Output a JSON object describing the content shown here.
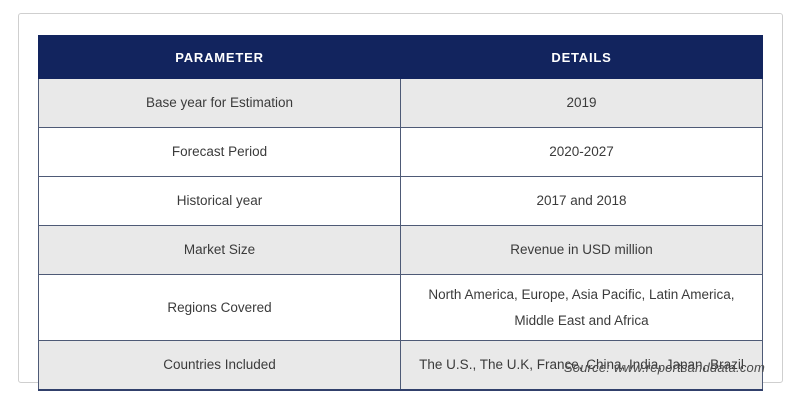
{
  "table": {
    "headers": [
      {
        "label": "PARAMETER"
      },
      {
        "label": "DETAILS"
      }
    ],
    "rows": [
      {
        "parameter": "Base year for Estimation",
        "details": "2019",
        "shaded": true,
        "tall": false
      },
      {
        "parameter": "Forecast Period",
        "details": "2020-2027",
        "shaded": false,
        "tall": false
      },
      {
        "parameter": "Historical year",
        "details": "2017 and 2018",
        "shaded": false,
        "tall": false
      },
      {
        "parameter": "Market Size",
        "details": "Revenue in USD million",
        "shaded": true,
        "tall": false
      },
      {
        "parameter": "Regions Covered",
        "details": "North America, Europe, Asia Pacific, Latin America, Middle East and Africa",
        "shaded": false,
        "tall": true
      },
      {
        "parameter": "Countries Included",
        "details": "The U.S., The  U.K, France, China, India, Japan, Brazil",
        "shaded": true,
        "tall": false
      }
    ]
  },
  "source": {
    "label": "Source: www.reportsanddata.com"
  },
  "colors": {
    "header_bg": "#12245e",
    "header_text": "#ffffff",
    "row_shaded_bg": "#e9e9e9",
    "row_white_bg": "#ffffff",
    "cell_border": "#4e5a76",
    "table_bottom_border": "#31406b",
    "card_border": "#cfcfcf",
    "body_text": "#3b3b3b",
    "source_text": "#4a4a4a"
  }
}
